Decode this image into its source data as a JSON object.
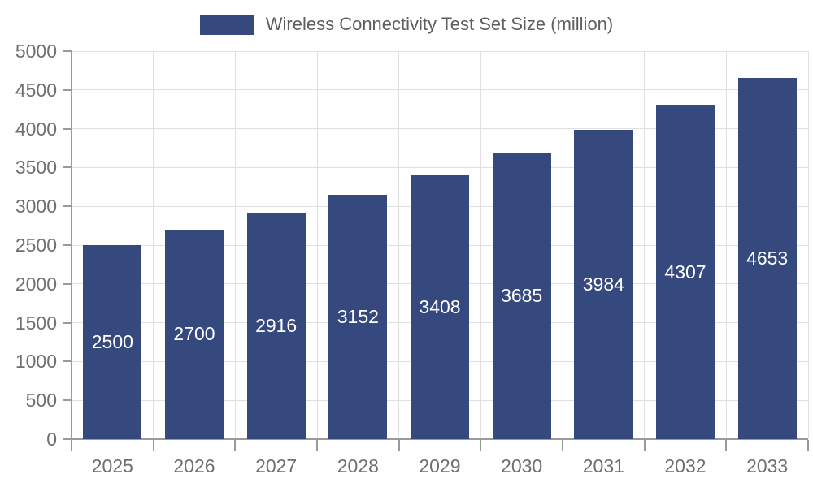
{
  "legend": {
    "label": "Wireless Connectivity Test Set Size (million)"
  },
  "chart_data": {
    "type": "bar",
    "title": "Wireless Connectivity Test Set Size (million)",
    "categories": [
      "2025",
      "2026",
      "2027",
      "2028",
      "2029",
      "2030",
      "2031",
      "2032",
      "2033"
    ],
    "values": [
      2500,
      2700,
      2916,
      3152,
      3408,
      3685,
      3984,
      4307,
      4653
    ],
    "xlabel": "",
    "ylabel": "",
    "ylim": [
      0,
      5000
    ],
    "yticks": [
      0,
      500,
      1000,
      1500,
      2000,
      2500,
      3000,
      3500,
      4000,
      4500,
      5000
    ],
    "grid": "on",
    "legend_position": "top-center",
    "bar_color": "#36497E",
    "value_label_color": "#ffffff",
    "axis_color": "#9a9a9a",
    "grid_color": "#e0e0e0",
    "tick_label_color": "#6f6f6f"
  }
}
